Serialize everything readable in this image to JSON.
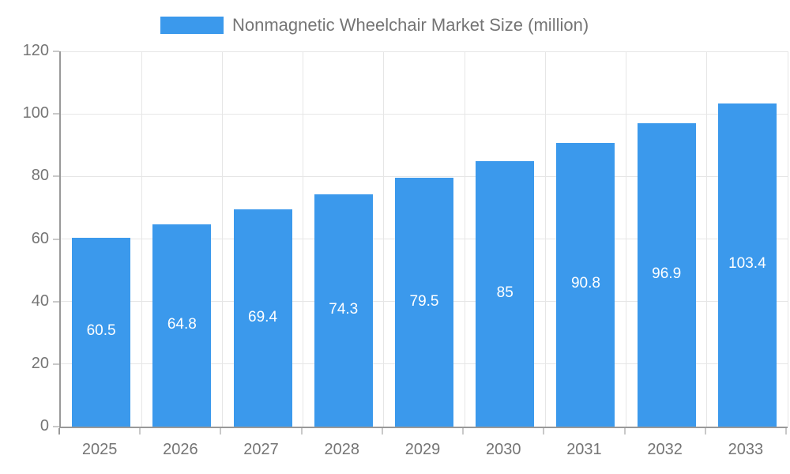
{
  "legend": {
    "label": "Nonmagnetic Wheelchair Market Size (million)"
  },
  "chart_data": {
    "type": "bar",
    "title": "",
    "xlabel": "",
    "ylabel": "",
    "categories": [
      "2025",
      "2026",
      "2027",
      "2028",
      "2029",
      "2030",
      "2031",
      "2032",
      "2033"
    ],
    "series": [
      {
        "name": "Nonmagnetic Wheelchair Market Size (million)",
        "values": [
          60.5,
          64.8,
          69.4,
          74.3,
          79.5,
          85,
          90.8,
          96.9,
          103.4
        ]
      }
    ],
    "value_labels": [
      "60.5",
      "64.8",
      "69.4",
      "74.3",
      "79.5",
      "85",
      "90.8",
      "96.9",
      "103.4"
    ],
    "ylim": [
      0,
      120
    ],
    "yticks": [
      0,
      20,
      40,
      60,
      80,
      100,
      120
    ],
    "grid": true,
    "legend_position": "top"
  },
  "colors": {
    "bar": "#3B99EC",
    "axis": "#999999",
    "grid": "#E6E6E6",
    "tick": "#C9C9C9",
    "axis_label": "#757575",
    "value_label": "#FFFFFF",
    "background": "#FFFFFF"
  }
}
